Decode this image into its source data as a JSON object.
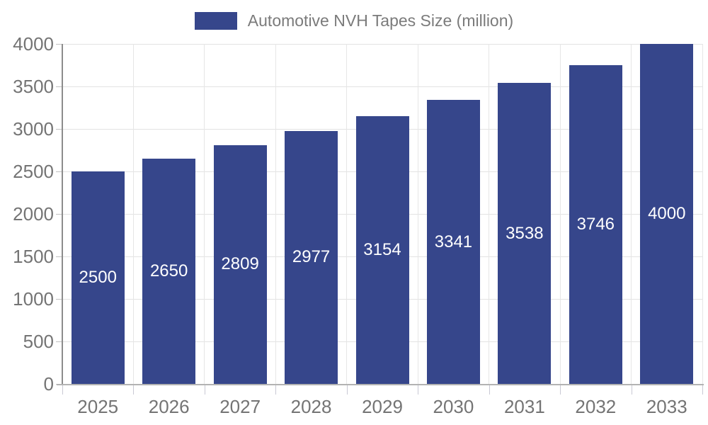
{
  "legend": {
    "label": "Automotive NVH Tapes Size (million)",
    "swatch_color": "#36468b"
  },
  "chart_data": {
    "type": "bar",
    "title": "",
    "series_name": "Automotive NVH Tapes Size (million)",
    "categories": [
      "2025",
      "2026",
      "2027",
      "2028",
      "2029",
      "2030",
      "2031",
      "2032",
      "2033"
    ],
    "values": [
      2500,
      2650,
      2809,
      2977,
      3154,
      3341,
      3538,
      3746,
      4000
    ],
    "xlabel": "",
    "ylabel": "",
    "ylim": [
      0,
      4000
    ],
    "y_ticks": [
      0,
      500,
      1000,
      1500,
      2000,
      2500,
      3000,
      3500,
      4000
    ],
    "grid": true,
    "legend_position": "top-center",
    "bar_color": "#36468b",
    "value_label_color": "#ffffff",
    "axis_text_color": "#747474",
    "gridline_color": "#e3e3e3"
  }
}
